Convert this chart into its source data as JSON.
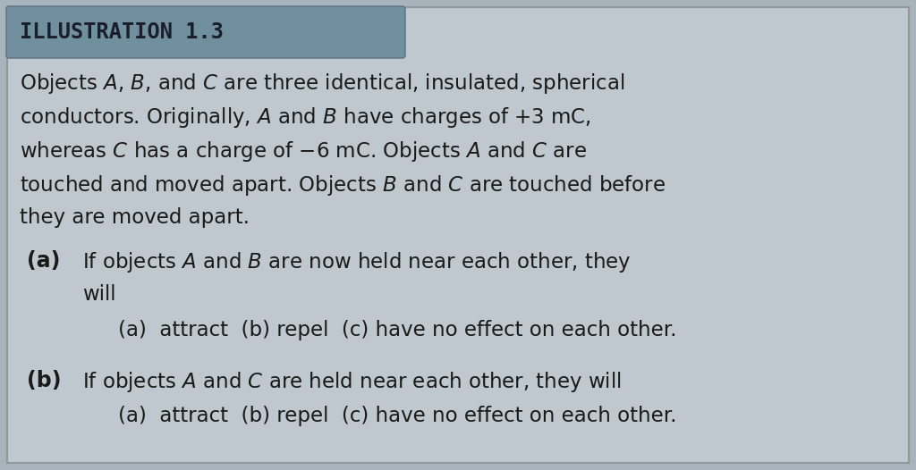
{
  "outer_bg": "#a8b4bc",
  "card_bg": "#bec8ce",
  "header_bg": "#7090a0",
  "header_text_color": "#1a1e2a",
  "body_text_color": "#1a1a1a",
  "header_text": "ILLUSTRATION 1.3",
  "header_fontsize": 17,
  "body_fontsize": 16.5,
  "bold_fontsize": 17,
  "line1": "Objects $A$, $B$, and $C$ are three identical, insulated, spherical",
  "line2": "conductors. Originally, $A$ and $B$ have charges of +3 mC,",
  "line3": "whereas $C$ has a charge of −6 mC. Objects $A$ and $C$ are",
  "line4": "touched and moved apart. Objects $B$ and $C$ are touched before",
  "line5": "they are moved apart.",
  "qa_label": "(a)",
  "qa_line1": "If objects $A$ and $B$ are now held near each other, they",
  "qa_line2": "will",
  "qa_options": "(a)  attract  (b) repel  (c) have no effect on each other.",
  "qb_label": "(b)",
  "qb_line1": "If objects $A$ and $C$ are held near each other, they will",
  "qb_options": "(a)  attract  (b) repel  (c) have no effect on each other."
}
